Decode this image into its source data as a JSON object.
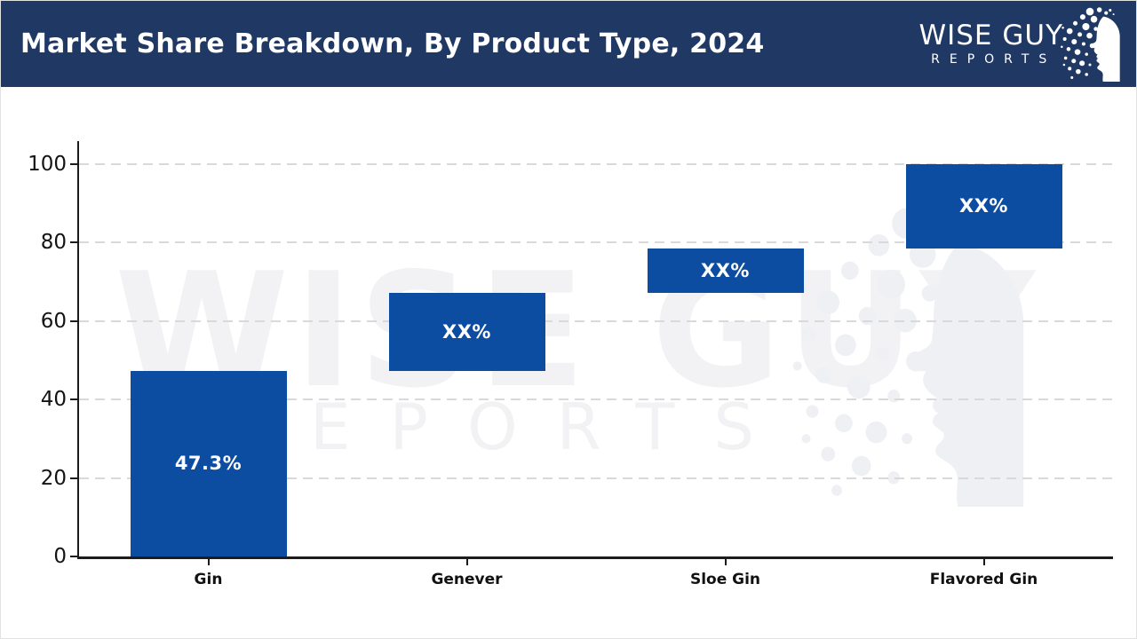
{
  "header": {
    "title": "Market Share Breakdown, By Product Type, 2024",
    "bg_color": "#203864",
    "logo": {
      "line1": "WISE GUY",
      "line2": "REPORTS"
    }
  },
  "watermark": {
    "line1": "WISE GUY",
    "line2": "REPORTS"
  },
  "chart_data": {
    "type": "bar",
    "subtype": "floating-waterfall",
    "title": "Market Share Breakdown, By Product Type, 2024",
    "categories": [
      "Gin",
      "Genever",
      "Sloe Gin",
      "Flavored Gin"
    ],
    "segments": [
      {
        "category": "Gin",
        "start": 0,
        "end": 47.3,
        "label": "47.3%"
      },
      {
        "category": "Genever",
        "start": 47.3,
        "end": 67.2,
        "label": "XX%"
      },
      {
        "category": "Sloe Gin",
        "start": 67.2,
        "end": 78.4,
        "label": "XX%"
      },
      {
        "category": "Flavored Gin",
        "start": 78.4,
        "end": 100,
        "label": "XX%"
      }
    ],
    "xlabel": "",
    "ylabel": "",
    "ylim": [
      0,
      100
    ],
    "yticks": [
      0,
      20,
      40,
      60,
      80,
      100
    ],
    "grid": "horizontal-dashed",
    "legend": "none",
    "bar_color": "#0d4da1",
    "bar_label_color": "#ffffff",
    "axis_color": "#1c1c1c",
    "grid_color": "#d9d9d9"
  }
}
